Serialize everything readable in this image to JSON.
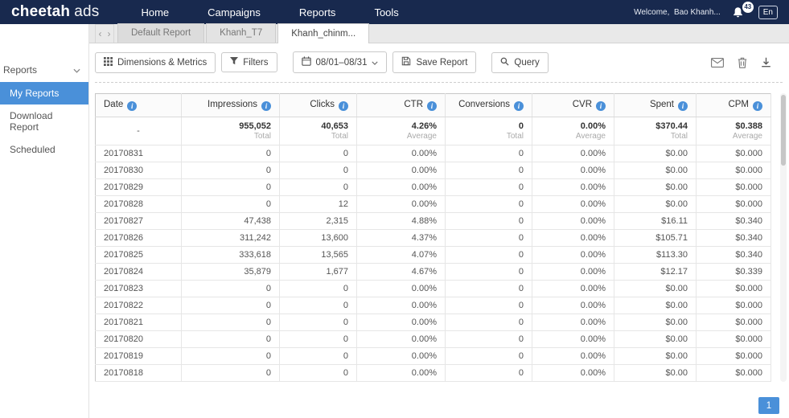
{
  "navbar": {
    "brand_bold": "cheetah",
    "brand_light": "ads",
    "items": [
      "Home",
      "Campaigns",
      "Reports",
      "Tools"
    ],
    "welcome": "Welcome,",
    "username": "Bao Khanh...",
    "notification_count": "43",
    "language": "En"
  },
  "sidebar": {
    "section": "Reports",
    "items": [
      "My Reports",
      "Download Report",
      "Scheduled"
    ]
  },
  "tabs": [
    "Default Report",
    "Khanh_T7",
    "Khanh_chinm..."
  ],
  "toolbar": {
    "dimensions_metrics": "Dimensions & Metrics",
    "filters": "Filters",
    "date_range": "08/01–08/31",
    "save_report": "Save Report",
    "query": "Query"
  },
  "table": {
    "columns": [
      "Date",
      "Impressions",
      "Clicks",
      "CTR",
      "Conversions",
      "CVR",
      "Spent",
      "CPM"
    ],
    "totals": {
      "date": "-",
      "values": [
        "955,052",
        "40,653",
        "4.26%",
        "0",
        "0.00%",
        "$370.44",
        "$0.388"
      ],
      "sublabels": [
        "Total",
        "Total",
        "Average",
        "Total",
        "Average",
        "Total",
        "Average"
      ]
    },
    "rows": [
      [
        "20170831",
        "0",
        "0",
        "0.00%",
        "0",
        "0.00%",
        "$0.00",
        "$0.000"
      ],
      [
        "20170830",
        "0",
        "0",
        "0.00%",
        "0",
        "0.00%",
        "$0.00",
        "$0.000"
      ],
      [
        "20170829",
        "0",
        "0",
        "0.00%",
        "0",
        "0.00%",
        "$0.00",
        "$0.000"
      ],
      [
        "20170828",
        "0",
        "12",
        "0.00%",
        "0",
        "0.00%",
        "$0.00",
        "$0.000"
      ],
      [
        "20170827",
        "47,438",
        "2,315",
        "4.88%",
        "0",
        "0.00%",
        "$16.11",
        "$0.340"
      ],
      [
        "20170826",
        "311,242",
        "13,600",
        "4.37%",
        "0",
        "0.00%",
        "$105.71",
        "$0.340"
      ],
      [
        "20170825",
        "333,618",
        "13,565",
        "4.07%",
        "0",
        "0.00%",
        "$113.30",
        "$0.340"
      ],
      [
        "20170824",
        "35,879",
        "1,677",
        "4.67%",
        "0",
        "0.00%",
        "$12.17",
        "$0.339"
      ],
      [
        "20170823",
        "0",
        "0",
        "0.00%",
        "0",
        "0.00%",
        "$0.00",
        "$0.000"
      ],
      [
        "20170822",
        "0",
        "0",
        "0.00%",
        "0",
        "0.00%",
        "$0.00",
        "$0.000"
      ],
      [
        "20170821",
        "0",
        "0",
        "0.00%",
        "0",
        "0.00%",
        "$0.00",
        "$0.000"
      ],
      [
        "20170820",
        "0",
        "0",
        "0.00%",
        "0",
        "0.00%",
        "$0.00",
        "$0.000"
      ],
      [
        "20170819",
        "0",
        "0",
        "0.00%",
        "0",
        "0.00%",
        "$0.00",
        "$0.000"
      ],
      [
        "20170818",
        "0",
        "0",
        "0.00%",
        "0",
        "0.00%",
        "$0.00",
        "$0.000"
      ]
    ]
  },
  "pagination": {
    "page": "1"
  },
  "colors": {
    "navbar_bg": "#18294e",
    "accent": "#4a90d9"
  }
}
